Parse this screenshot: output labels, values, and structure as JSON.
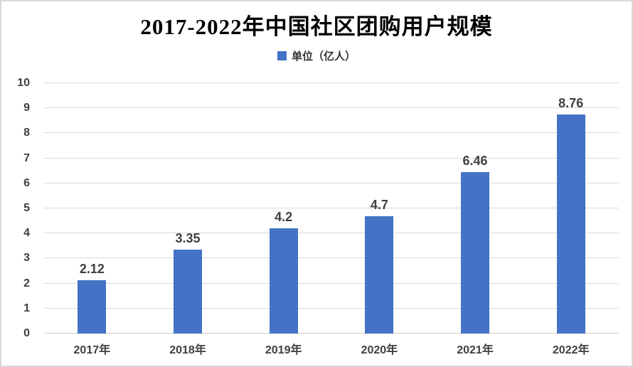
{
  "chart": {
    "title": "2017-2022年中国社区团购用户规模",
    "legend_label": "单位（亿人）"
  },
  "chart_data": {
    "type": "bar",
    "title": "2017-2022年中国社区团购用户规模",
    "legend": [
      "单位（亿人）"
    ],
    "legend_position": "top-center",
    "categories": [
      "2017年",
      "2018年",
      "2019年",
      "2020年",
      "2021年",
      "2022年"
    ],
    "values": [
      2.12,
      3.35,
      4.2,
      4.7,
      6.46,
      8.76
    ],
    "xlabel": "",
    "ylabel": "",
    "ylim": [
      0,
      10
    ],
    "ytick_step": 1,
    "grid": "horizontal",
    "colors": {
      "bar": "#4472c4",
      "axis_label": "#404040",
      "data_label": "#3f3f3f",
      "gridline": "#d9d9d9",
      "title": "#000000"
    }
  }
}
